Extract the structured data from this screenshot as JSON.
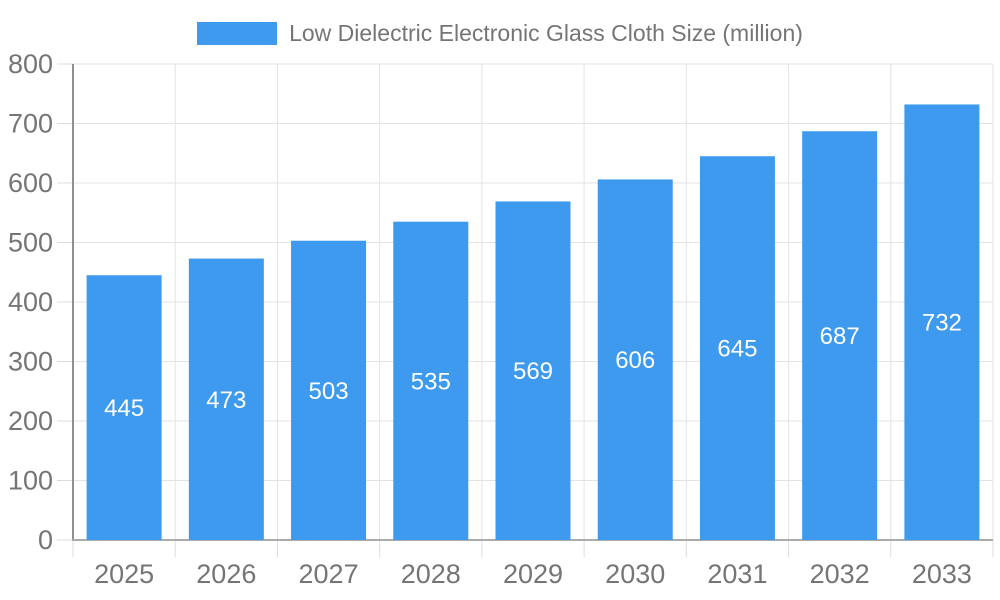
{
  "legend": {
    "label": "Low Dielectric Electronic Glass Cloth Size (million)"
  },
  "chart_data": {
    "type": "bar",
    "title": "Low Dielectric Electronic Glass Cloth Size (million)",
    "categories": [
      "2025",
      "2026",
      "2027",
      "2028",
      "2029",
      "2030",
      "2031",
      "2032",
      "2033"
    ],
    "series": [
      {
        "name": "Low Dielectric Electronic Glass Cloth Size (million)",
        "values": [
          445,
          473,
          503,
          535,
          569,
          606,
          645,
          687,
          732
        ]
      }
    ],
    "xlabel": "",
    "ylabel": "",
    "ylim": [
      0,
      800
    ],
    "yticks": [
      0,
      100,
      200,
      300,
      400,
      500,
      600,
      700,
      800
    ],
    "grid": true,
    "legend_position": "top-center",
    "value_label_position": "inside-center",
    "colors": {
      "bar": "#3D9AEE",
      "axis_text": "#757575",
      "value_text": "#FFFFFF",
      "gridline": "#E3E3E3",
      "tick": "#DCDCDC",
      "y_axis_line": "#8F8F8F",
      "baseline": "#ABABAB"
    }
  }
}
